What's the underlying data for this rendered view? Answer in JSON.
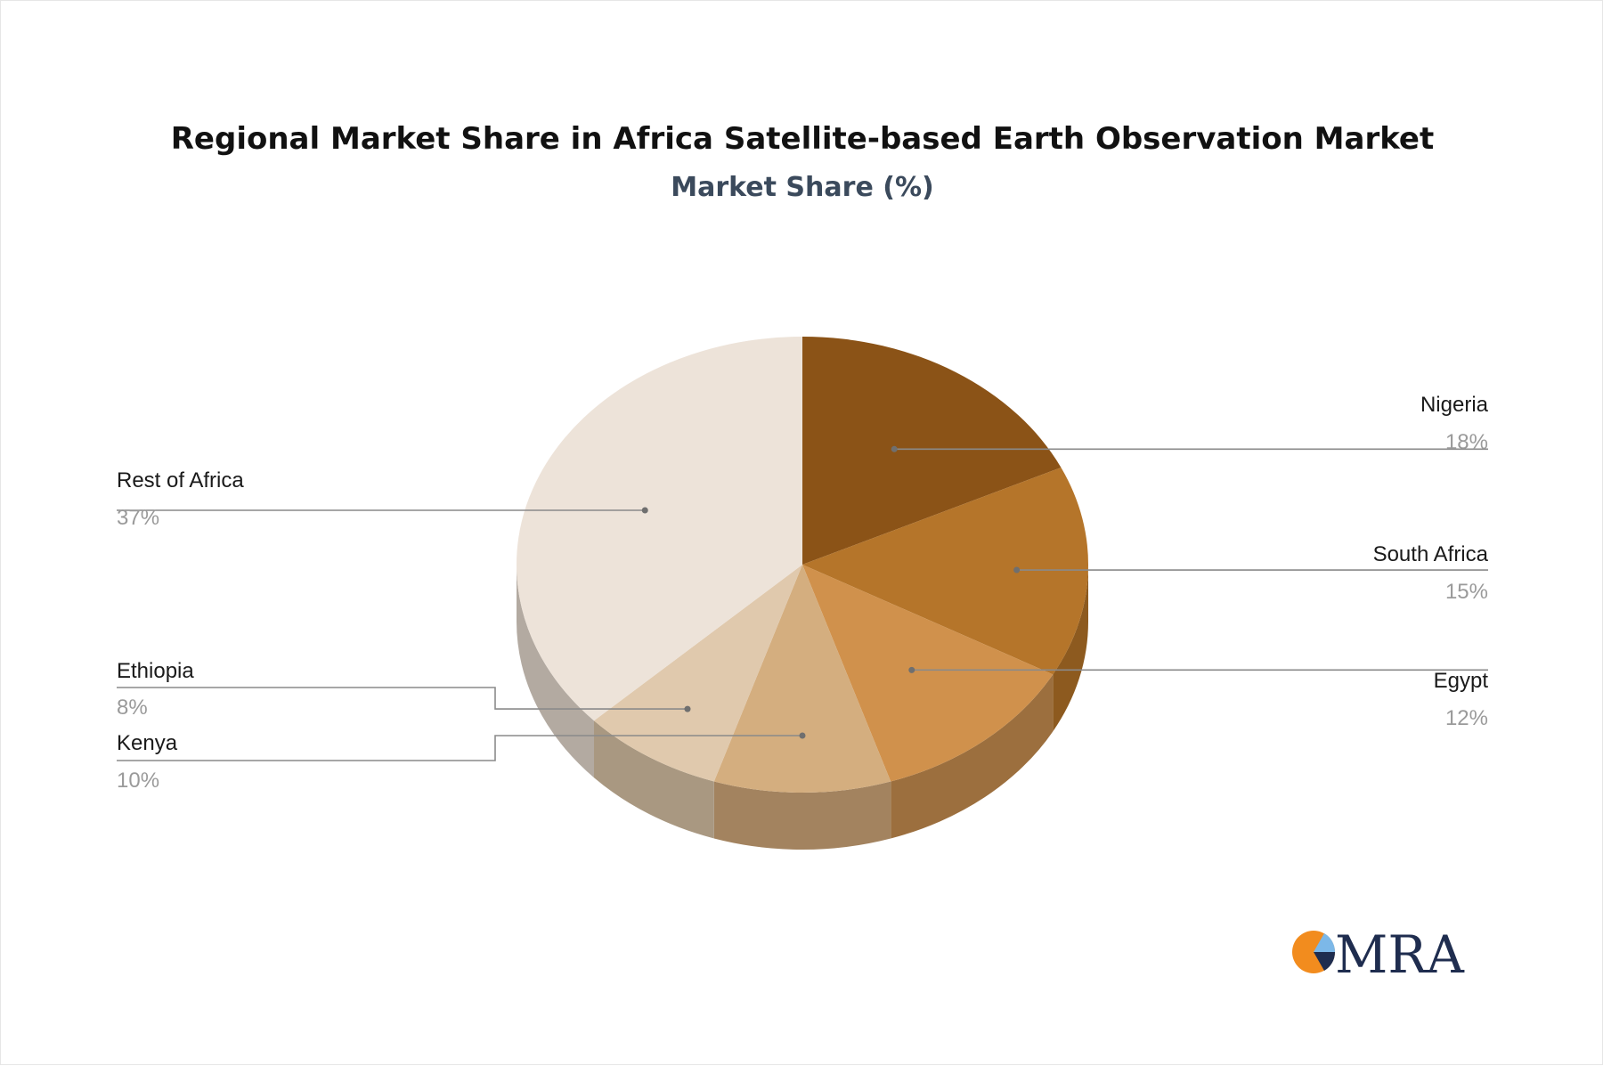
{
  "chart_data": {
    "type": "pie",
    "title": "Regional Market Share in Africa Satellite-based Earth Observation Market",
    "subtitle": "Market Share (%)",
    "slices": [
      {
        "label": "Nigeria",
        "value": 18,
        "value_label": "18%",
        "color": "#8b5317",
        "side_color": "#6b3f10"
      },
      {
        "label": "South Africa",
        "value": 15,
        "value_label": "15%",
        "color": "#b5752a",
        "side_color": "#8d5a1f"
      },
      {
        "label": "Egypt",
        "value": 12,
        "value_label": "12%",
        "color": "#d0914c",
        "side_color": "#9c6f3e"
      },
      {
        "label": "Kenya",
        "value": 10,
        "value_label": "10%",
        "color": "#d4ae7f",
        "side_color": "#a3835f"
      },
      {
        "label": "Ethiopia",
        "value": 8,
        "value_label": "8%",
        "color": "#e0c9ad",
        "side_color": "#a99881"
      },
      {
        "label": "Rest of Africa",
        "value": 37,
        "value_label": "37%",
        "color": "#ede3d9",
        "side_color": "#b3aaa1"
      }
    ]
  },
  "logo": {
    "text": "MRA",
    "colors": {
      "orange": "#f28c1e",
      "blue": "#7cb8e8",
      "navy": "#1f2d4f"
    }
  }
}
